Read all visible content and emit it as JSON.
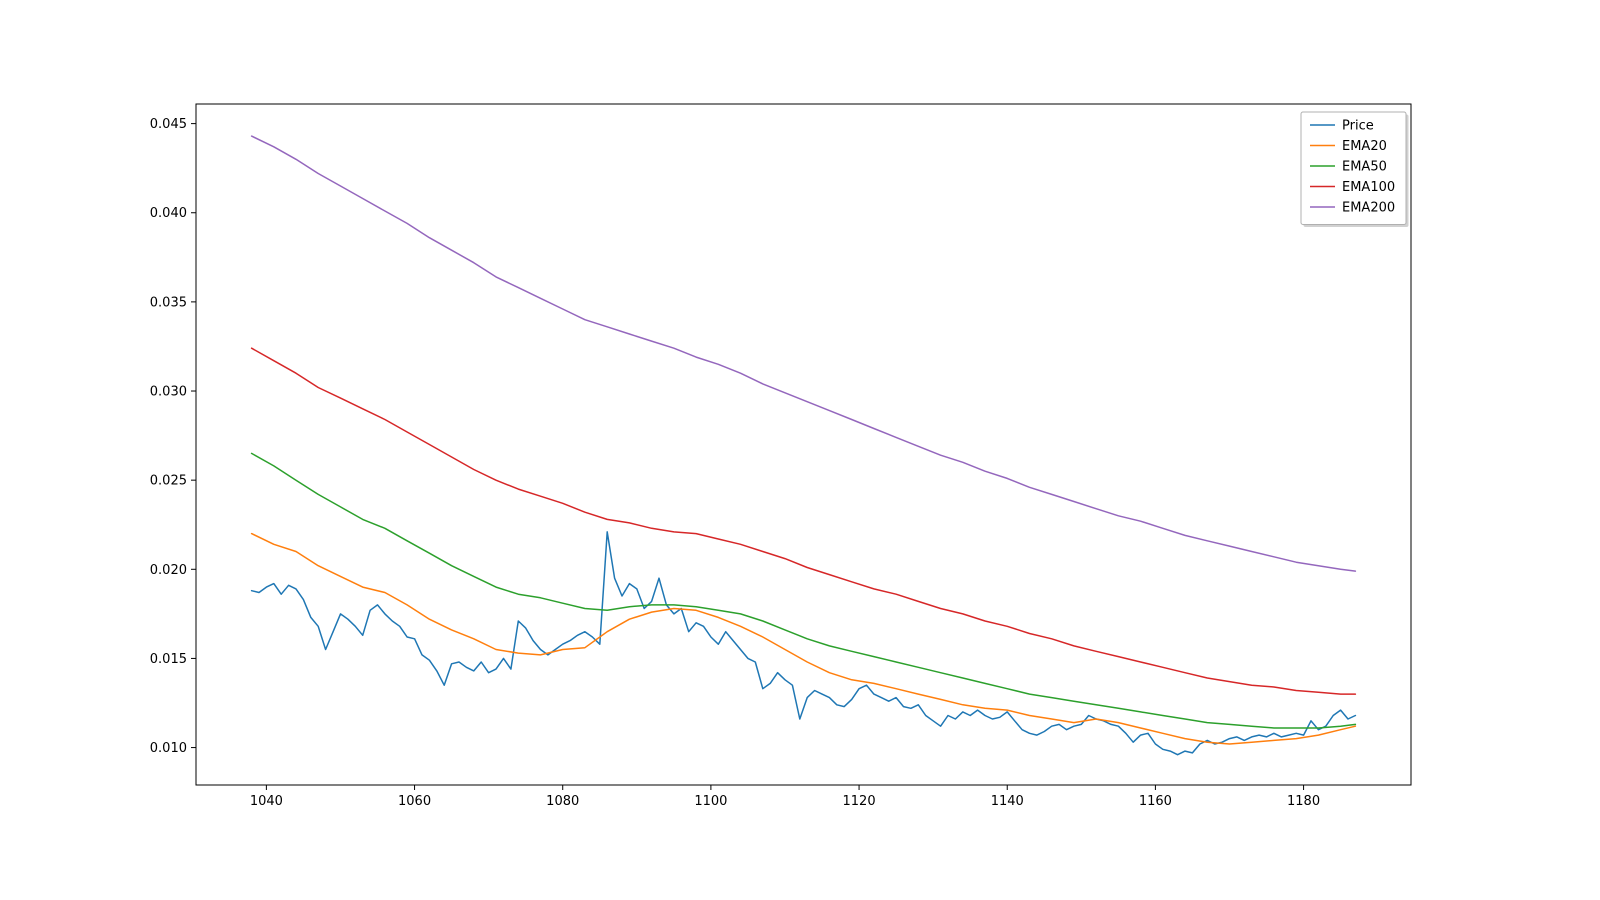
{
  "figure": {
    "background": "#ffffff",
    "axes_color": "#000000",
    "tick_label_color": "#000000"
  },
  "legend": {
    "position": "upper right",
    "entries": [
      "Price",
      "EMA20",
      "EMA50",
      "EMA100",
      "EMA200"
    ],
    "border_color": "#b0b0b0",
    "background": "#ffffff"
  },
  "chart_data": {
    "type": "line",
    "title": "",
    "xlabel": "",
    "ylabel": "",
    "xlim": [
      1030.5,
      1194.5
    ],
    "ylim": [
      0.0079,
      0.0461
    ],
    "x_ticks": [
      1040,
      1060,
      1080,
      1100,
      1120,
      1140,
      1160,
      1180
    ],
    "y_ticks": [
      0.01,
      0.015,
      0.02,
      0.025,
      0.03,
      0.035,
      0.04,
      0.045
    ],
    "grid": false,
    "legend_position": "upper right",
    "series": [
      {
        "name": "Price",
        "color": "#1f77b4",
        "x_start": 1038,
        "x_step": 1,
        "y": [
          0.0188,
          0.0187,
          0.019,
          0.0192,
          0.0186,
          0.0191,
          0.0189,
          0.0183,
          0.0173,
          0.0168,
          0.0155,
          0.0165,
          0.0175,
          0.0172,
          0.0168,
          0.0163,
          0.0177,
          0.018,
          0.0175,
          0.0171,
          0.0168,
          0.0162,
          0.0161,
          0.0152,
          0.0149,
          0.0143,
          0.0135,
          0.0147,
          0.0148,
          0.0145,
          0.0143,
          0.0148,
          0.0142,
          0.0144,
          0.015,
          0.0144,
          0.0171,
          0.0167,
          0.016,
          0.0155,
          0.0152,
          0.0155,
          0.0158,
          0.016,
          0.0163,
          0.0165,
          0.0162,
          0.0158,
          0.0221,
          0.0195,
          0.0185,
          0.0192,
          0.0189,
          0.0178,
          0.0182,
          0.0195,
          0.018,
          0.0175,
          0.0178,
          0.0165,
          0.017,
          0.0168,
          0.0162,
          0.0158,
          0.0165,
          0.016,
          0.0155,
          0.015,
          0.0148,
          0.0133,
          0.0136,
          0.0142,
          0.0138,
          0.0135,
          0.0116,
          0.0128,
          0.0132,
          0.013,
          0.0128,
          0.0124,
          0.0123,
          0.0127,
          0.0133,
          0.0135,
          0.013,
          0.0128,
          0.0126,
          0.0128,
          0.0123,
          0.0122,
          0.0124,
          0.0118,
          0.0115,
          0.0112,
          0.0118,
          0.0116,
          0.012,
          0.0118,
          0.0121,
          0.0118,
          0.0116,
          0.0117,
          0.012,
          0.0115,
          0.011,
          0.0108,
          0.0107,
          0.0109,
          0.0112,
          0.0113,
          0.011,
          0.0112,
          0.0113,
          0.0118,
          0.0116,
          0.0115,
          0.0113,
          0.0112,
          0.0108,
          0.0103,
          0.0107,
          0.0108,
          0.0102,
          0.0099,
          0.0098,
          0.0096,
          0.0098,
          0.0097,
          0.0102,
          0.0104,
          0.0102,
          0.0103,
          0.0105,
          0.0106,
          0.0104,
          0.0106,
          0.0107,
          0.0106,
          0.0108,
          0.0106,
          0.0107,
          0.0108,
          0.0107,
          0.0115,
          0.011,
          0.0112,
          0.0118,
          0.0121,
          0.0116,
          0.0118
        ]
      },
      {
        "name": "EMA20",
        "color": "#ff7f0e",
        "x": [
          1038,
          1041,
          1044,
          1047,
          1050,
          1053,
          1056,
          1059,
          1062,
          1065,
          1068,
          1071,
          1074,
          1077,
          1080,
          1083,
          1086,
          1089,
          1092,
          1095,
          1098,
          1101,
          1104,
          1107,
          1110,
          1113,
          1116,
          1119,
          1122,
          1125,
          1128,
          1131,
          1134,
          1137,
          1140,
          1143,
          1146,
          1149,
          1152,
          1155,
          1158,
          1161,
          1164,
          1167,
          1170,
          1173,
          1176,
          1179,
          1182,
          1185,
          1187
        ],
        "y": [
          0.022,
          0.0214,
          0.021,
          0.0202,
          0.0196,
          0.019,
          0.0187,
          0.018,
          0.0172,
          0.0166,
          0.0161,
          0.0155,
          0.0153,
          0.0152,
          0.0155,
          0.0156,
          0.0165,
          0.0172,
          0.0176,
          0.0178,
          0.0177,
          0.0173,
          0.0168,
          0.0162,
          0.0155,
          0.0148,
          0.0142,
          0.0138,
          0.0136,
          0.0133,
          0.013,
          0.0127,
          0.0124,
          0.0122,
          0.0121,
          0.0118,
          0.0116,
          0.0114,
          0.0116,
          0.0114,
          0.0111,
          0.0108,
          0.0105,
          0.0103,
          0.0102,
          0.0103,
          0.0104,
          0.0105,
          0.0107,
          0.011,
          0.0112
        ]
      },
      {
        "name": "EMA50",
        "color": "#2ca02c",
        "x": [
          1038,
          1041,
          1044,
          1047,
          1050,
          1053,
          1056,
          1059,
          1062,
          1065,
          1068,
          1071,
          1074,
          1077,
          1080,
          1083,
          1086,
          1089,
          1092,
          1095,
          1098,
          1101,
          1104,
          1107,
          1110,
          1113,
          1116,
          1119,
          1122,
          1125,
          1128,
          1131,
          1134,
          1137,
          1140,
          1143,
          1146,
          1149,
          1152,
          1155,
          1158,
          1161,
          1164,
          1167,
          1170,
          1173,
          1176,
          1179,
          1182,
          1185,
          1187
        ],
        "y": [
          0.0265,
          0.0258,
          0.025,
          0.0242,
          0.0235,
          0.0228,
          0.0223,
          0.0216,
          0.0209,
          0.0202,
          0.0196,
          0.019,
          0.0186,
          0.0184,
          0.0181,
          0.0178,
          0.0177,
          0.0179,
          0.018,
          0.018,
          0.0179,
          0.0177,
          0.0175,
          0.0171,
          0.0166,
          0.0161,
          0.0157,
          0.0154,
          0.0151,
          0.0148,
          0.0145,
          0.0142,
          0.0139,
          0.0136,
          0.0133,
          0.013,
          0.0128,
          0.0126,
          0.0124,
          0.0122,
          0.012,
          0.0118,
          0.0116,
          0.0114,
          0.0113,
          0.0112,
          0.0111,
          0.0111,
          0.0111,
          0.0112,
          0.0113
        ]
      },
      {
        "name": "EMA100",
        "color": "#d62728",
        "x": [
          1038,
          1041,
          1044,
          1047,
          1050,
          1053,
          1056,
          1059,
          1062,
          1065,
          1068,
          1071,
          1074,
          1077,
          1080,
          1083,
          1086,
          1089,
          1092,
          1095,
          1098,
          1101,
          1104,
          1107,
          1110,
          1113,
          1116,
          1119,
          1122,
          1125,
          1128,
          1131,
          1134,
          1137,
          1140,
          1143,
          1146,
          1149,
          1152,
          1155,
          1158,
          1161,
          1164,
          1167,
          1170,
          1173,
          1176,
          1179,
          1182,
          1185,
          1187
        ],
        "y": [
          0.0324,
          0.0317,
          0.031,
          0.0302,
          0.0296,
          0.029,
          0.0284,
          0.0277,
          0.027,
          0.0263,
          0.0256,
          0.025,
          0.0245,
          0.0241,
          0.0237,
          0.0232,
          0.0228,
          0.0226,
          0.0223,
          0.0221,
          0.022,
          0.0217,
          0.0214,
          0.021,
          0.0206,
          0.0201,
          0.0197,
          0.0193,
          0.0189,
          0.0186,
          0.0182,
          0.0178,
          0.0175,
          0.0171,
          0.0168,
          0.0164,
          0.0161,
          0.0157,
          0.0154,
          0.0151,
          0.0148,
          0.0145,
          0.0142,
          0.0139,
          0.0137,
          0.0135,
          0.0134,
          0.0132,
          0.0131,
          0.013,
          0.013
        ]
      },
      {
        "name": "EMA200",
        "color": "#9467bd",
        "x": [
          1038,
          1041,
          1044,
          1047,
          1050,
          1053,
          1056,
          1059,
          1062,
          1065,
          1068,
          1071,
          1074,
          1077,
          1080,
          1083,
          1086,
          1089,
          1092,
          1095,
          1098,
          1101,
          1104,
          1107,
          1110,
          1113,
          1116,
          1119,
          1122,
          1125,
          1128,
          1131,
          1134,
          1137,
          1140,
          1143,
          1146,
          1149,
          1152,
          1155,
          1158,
          1161,
          1164,
          1167,
          1170,
          1173,
          1176,
          1179,
          1182,
          1185,
          1187
        ],
        "y": [
          0.0443,
          0.0437,
          0.043,
          0.0422,
          0.0415,
          0.0408,
          0.0401,
          0.0394,
          0.0386,
          0.0379,
          0.0372,
          0.0364,
          0.0358,
          0.0352,
          0.0346,
          0.034,
          0.0336,
          0.0332,
          0.0328,
          0.0324,
          0.0319,
          0.0315,
          0.031,
          0.0304,
          0.0299,
          0.0294,
          0.0289,
          0.0284,
          0.0279,
          0.0274,
          0.0269,
          0.0264,
          0.026,
          0.0255,
          0.0251,
          0.0246,
          0.0242,
          0.0238,
          0.0234,
          0.023,
          0.0227,
          0.0223,
          0.0219,
          0.0216,
          0.0213,
          0.021,
          0.0207,
          0.0204,
          0.0202,
          0.02,
          0.0199
        ]
      }
    ]
  }
}
